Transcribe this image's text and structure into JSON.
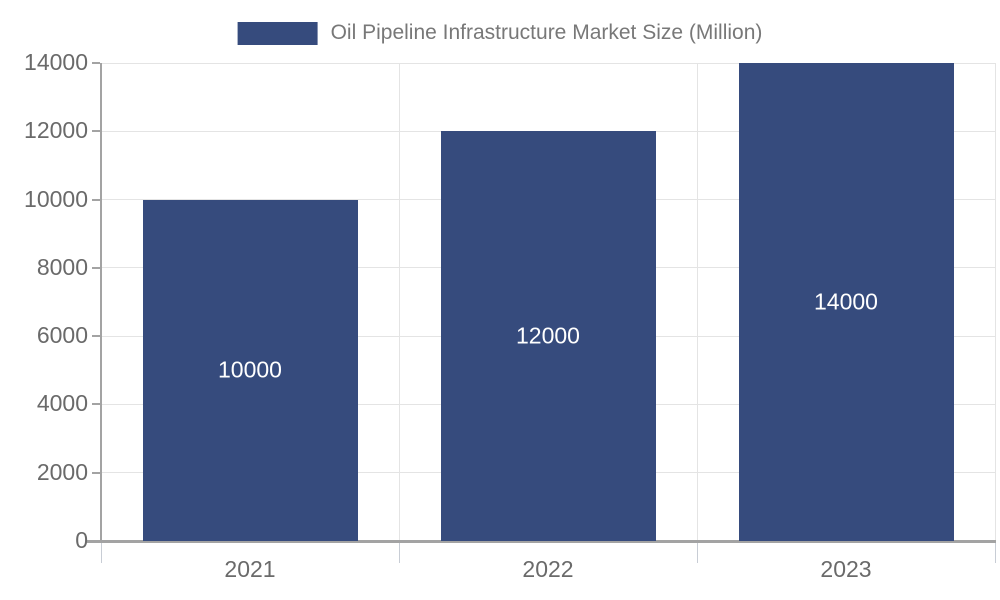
{
  "chart_data": {
    "type": "bar",
    "title": "Oil Pipeline Infrastructure Market Size (Million)",
    "categories": [
      "2021",
      "2022",
      "2023"
    ],
    "values": [
      10000,
      12000,
      14000
    ],
    "value_labels": [
      "10000",
      "12000",
      "14000"
    ],
    "y_ticks": [
      0,
      2000,
      4000,
      6000,
      8000,
      10000,
      12000,
      14000
    ],
    "ylim": [
      0,
      14000
    ],
    "xlabel": "",
    "ylabel": "",
    "grid": true,
    "bar_labels_inside": true,
    "legend": {
      "position": "top-center",
      "entries": [
        "Oil Pipeline Infrastructure Market Size (Million)"
      ]
    }
  },
  "colors": {
    "bar": "#364B7D",
    "bar_label": "#FFFFFF",
    "axis_line": "#A3A3A3",
    "grid_line": "#E4E4E4",
    "x_tick": "#C8CDD5",
    "tick_label": "#6A6A6A",
    "legend_text": "#787878",
    "background": "#FFFFFF"
  }
}
